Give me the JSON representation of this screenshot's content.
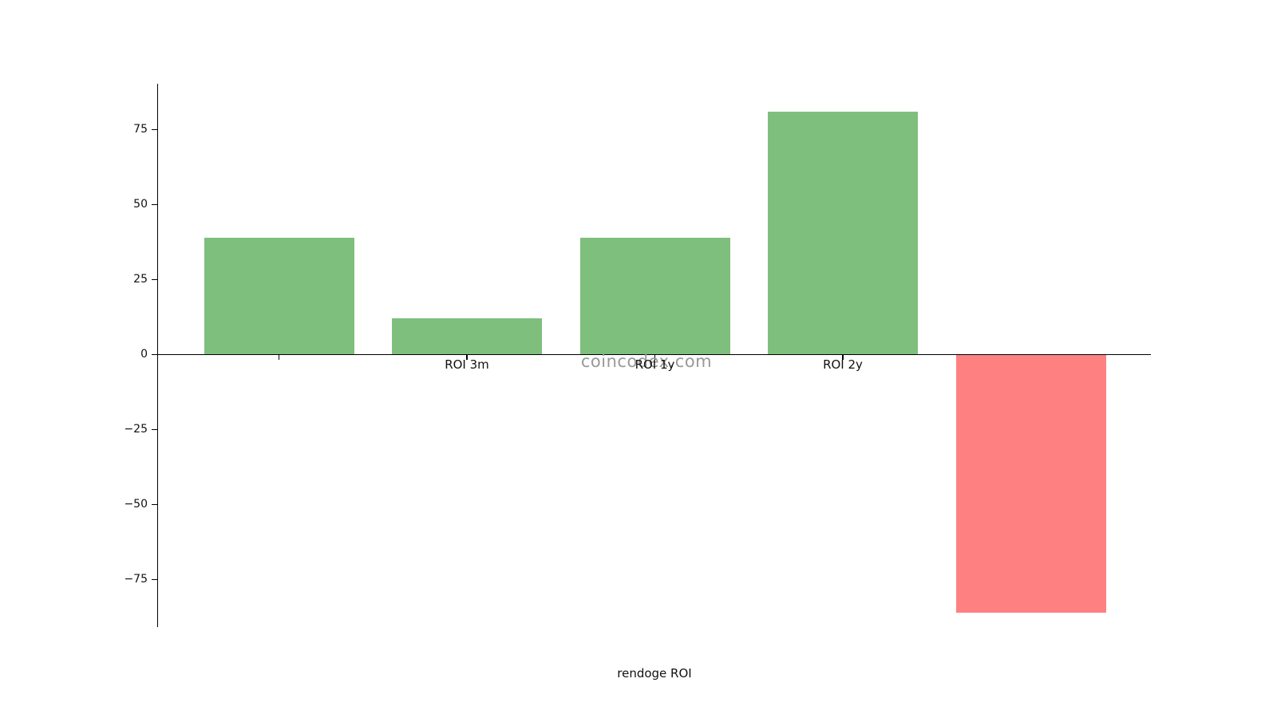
{
  "watermark": {
    "text": "coincodex.com",
    "color": "#999999"
  },
  "footer": {
    "caption": "rendoge ROI"
  },
  "chart_data": {
    "type": "bar",
    "title": "rendoge ROI",
    "xlabel": "rendoge ROI",
    "ylabel": "",
    "categories": [
      "",
      "ROI 3m",
      "ROI 1y",
      "ROI 2y",
      ""
    ],
    "values": [
      39,
      12,
      39,
      81,
      -86
    ],
    "positive_color": "#7ebf7e",
    "negative_color": "#ff8080",
    "ytick_values": [
      75,
      50,
      25,
      0,
      -25,
      -50,
      -75
    ],
    "ytick_labels": [
      "75",
      "50",
      "25",
      "0",
      "−25",
      "−50",
      "−75"
    ],
    "xticks_visible": [
      true,
      true,
      true,
      true,
      false
    ],
    "ylim": [
      -91,
      90
    ],
    "grid": false,
    "legend": null,
    "watermark": "coincodex.com"
  }
}
